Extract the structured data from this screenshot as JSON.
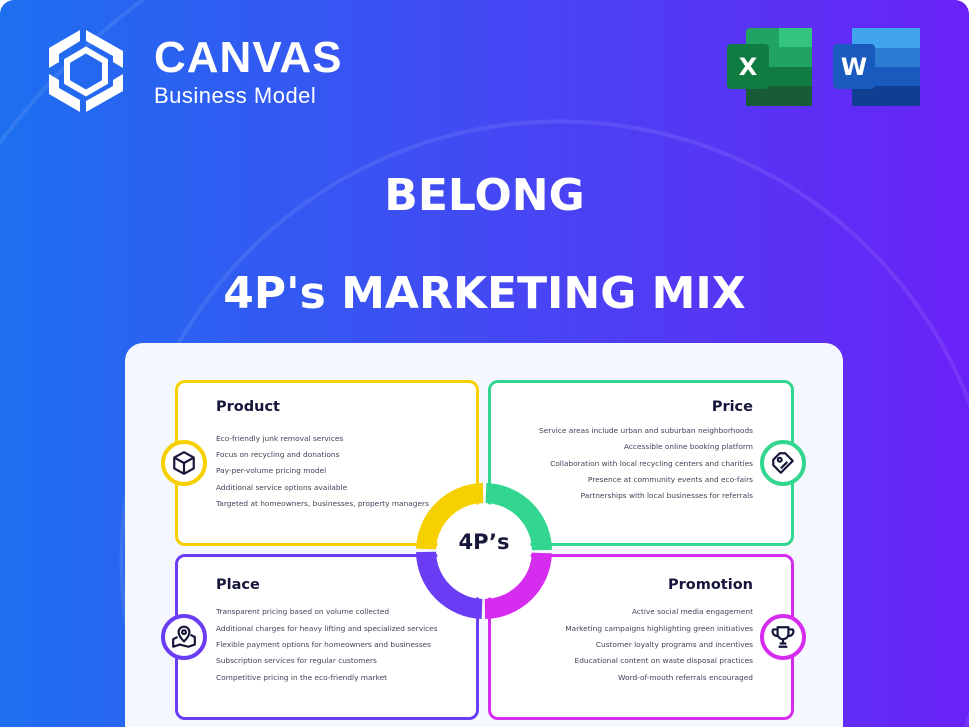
{
  "brand": {
    "title": "CANVAS",
    "subtitle": "Business Model"
  },
  "apps": [
    {
      "name": "excel-icon",
      "letter": "X"
    },
    {
      "name": "word-icon",
      "letter": "W"
    }
  ],
  "heading": {
    "company": "BELONG",
    "title": "4P's MARKETING MIX"
  },
  "center_label": "4P’s",
  "colors": {
    "product": "#f7d000",
    "price": "#33d68f",
    "place": "#6a3df5",
    "promotion": "#d62cf0",
    "text": "#15163a"
  },
  "quadrants": {
    "product": {
      "title": "Product",
      "icon": "box-icon",
      "items": [
        "Eco-friendly junk removal services",
        "Focus on recycling and donations",
        "Pay-per-volume pricing model",
        "Additional service options available",
        "Targeted at homeowners, businesses, property managers"
      ]
    },
    "price": {
      "title": "Price",
      "icon": "price-tag-icon",
      "items": [
        "Service areas include urban and suburban neighborhoods",
        "Accessible online booking platform",
        "Collaboration with local recycling centers and charities",
        "Presence at community events and eco-fairs",
        "Partnerships with local businesses for referrals"
      ]
    },
    "place": {
      "title": "Place",
      "icon": "map-pin-icon",
      "items": [
        "Transparent pricing based on volume collected",
        "Additional charges for heavy lifting and specialized services",
        "Flexible payment options for homeowners and businesses",
        "Subscription services for regular customers",
        "Competitive pricing in the eco-friendly market"
      ]
    },
    "promotion": {
      "title": "Promotion",
      "icon": "trophy-icon",
      "items": [
        "Active social media engagement",
        "Marketing campaigns highlighting green initiatives",
        "Customer loyalty programs and incentives",
        "Educational content on waste disposal practices",
        "Word-of-mouth referrals encouraged"
      ]
    }
  }
}
